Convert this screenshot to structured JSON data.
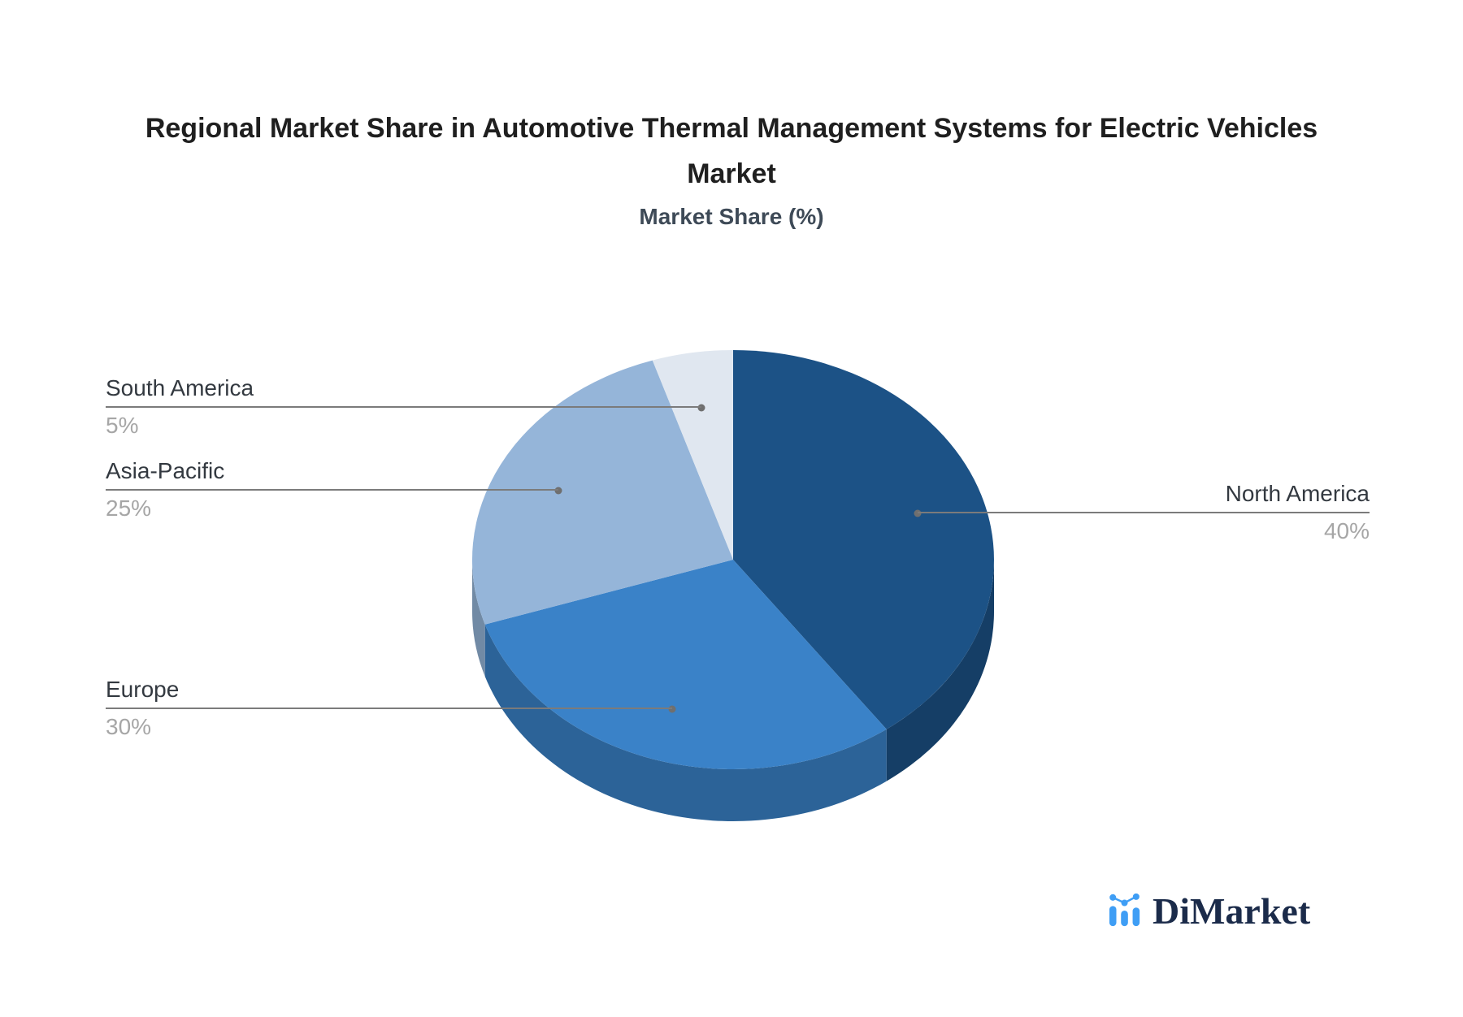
{
  "page": {
    "background": "#ffffff"
  },
  "chart_data": {
    "type": "pie",
    "style": "pie-3d",
    "title": "Regional Market Share in Automotive Thermal Management Systems for Electric Vehicles Market",
    "subtitle": "Market Share (%)",
    "unit": "%",
    "direction": "clockwise",
    "start_angle_deg": 0,
    "legend_position": "none",
    "label_style": "leader-line-callouts",
    "series": [
      {
        "name": "North America",
        "value": 40,
        "value_label": "40%",
        "color": "#1c5286"
      },
      {
        "name": "Europe",
        "value": 30,
        "value_label": "30%",
        "color": "#3a82c8"
      },
      {
        "name": "Asia-Pacific",
        "value": 25,
        "value_label": "25%",
        "color": "#95b5d9"
      },
      {
        "name": "South America",
        "value": 5,
        "value_label": "5%",
        "color": "#e0e7f0"
      }
    ]
  },
  "branding": {
    "logo_text": "DiMarket",
    "logo_icon": "bar-chart-icon",
    "logo_icon_color": "#3f9ef5",
    "logo_text_color": "#1b2b4a"
  },
  "colors": {
    "title_text": "#1f1f1f",
    "subtitle_text": "#3e4a57",
    "label_text": "#333940",
    "value_text": "#a6a6a6",
    "leader_line": "#7b7b7b",
    "leader_dot": "#6f6f6f"
  }
}
